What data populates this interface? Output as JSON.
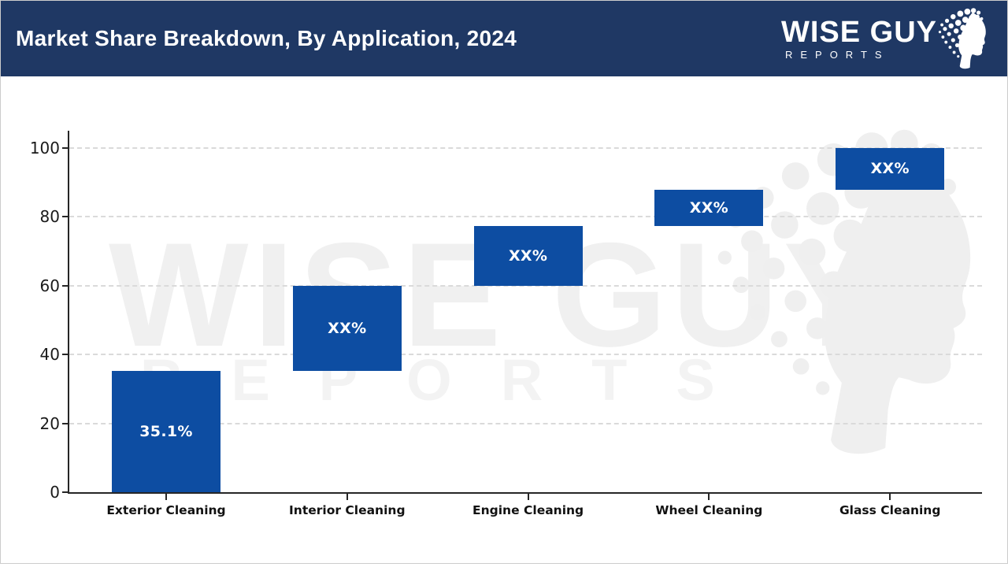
{
  "page": {
    "background": "#ffffff",
    "border_color": "#cccccc"
  },
  "header": {
    "background": "#1f3864",
    "title": "Market Share Breakdown, By Application, 2024",
    "logo": {
      "brand": "WISE GUY",
      "brand_sub": "REPORTS"
    }
  },
  "watermark": {
    "brand": "WISE GUY",
    "brand_sub": "REPORTS"
  },
  "chart_data": {
    "type": "bar",
    "subtype": "waterfall",
    "title": "Market Share Breakdown, By Application, 2024",
    "xlabel": "",
    "ylabel": "",
    "ylim": [
      0,
      104.5
    ],
    "yticks": [
      0,
      20,
      40,
      60,
      80,
      100
    ],
    "grid": "horizontal dashed",
    "legend": "none",
    "bar_color": "#0d4da2",
    "bar_label_color": "#ffffff",
    "categories": [
      "Exterior Cleaning",
      "Interior Cleaning",
      "Engine Cleaning",
      "Wheel Cleaning",
      "Glass Cleaning"
    ],
    "bars": [
      {
        "category": "Exterior Cleaning",
        "start": 0,
        "end": 35.1,
        "label": "35.1%"
      },
      {
        "category": "Interior Cleaning",
        "start": 35.1,
        "end": 60,
        "label": "XX%"
      },
      {
        "category": "Engine Cleaning",
        "start": 60,
        "end": 77.3,
        "label": "XX%"
      },
      {
        "category": "Wheel Cleaning",
        "start": 77.3,
        "end": 87.8,
        "label": "XX%"
      },
      {
        "category": "Glass Cleaning",
        "start": 87.8,
        "end": 100,
        "label": "XX%"
      }
    ]
  }
}
